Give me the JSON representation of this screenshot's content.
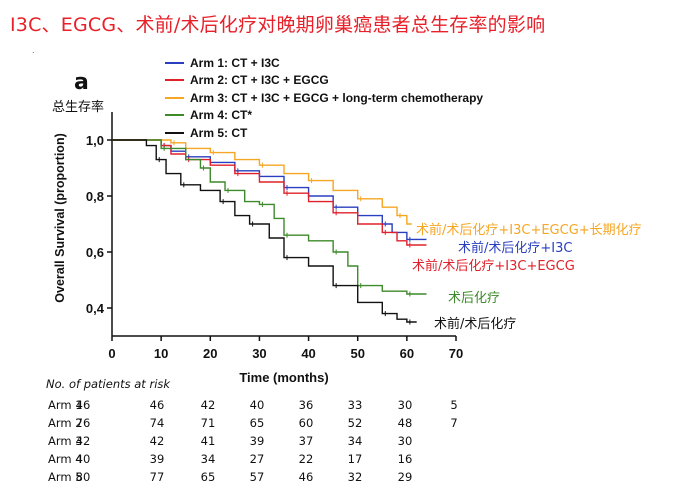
{
  "header": {
    "title": "I3C、EGCG、术前/术后化疗对晚期卵巢癌患者总生存率的影响",
    "dot": ".",
    "panel_label": "a",
    "y_label_cn": "总生存率"
  },
  "chart_data": {
    "type": "line",
    "subtype": "kaplan-meier",
    "xlabel": "Time (months)",
    "ylabel": "Overall Survival (proportion)",
    "xlim": [
      0,
      70
    ],
    "ylim": [
      0.3,
      1.1
    ],
    "x_ticks": [
      "0",
      "10",
      "20",
      "30",
      "40",
      "50",
      "60",
      "70"
    ],
    "x_tick_values": [
      0,
      10,
      20,
      30,
      40,
      50,
      60,
      70
    ],
    "y_ticks": [
      "0,4",
      "0,6",
      "0,8",
      "1,0"
    ],
    "y_tick_values": [
      0.4,
      0.6,
      0.8,
      1.0
    ],
    "legend_position": "top",
    "series": [
      {
        "name": "Arm 1: CT + I3C",
        "color": "#2a3fbf",
        "annotation": "术前/术后化疗+I3C",
        "points": [
          [
            0,
            1.0
          ],
          [
            8,
            1.0
          ],
          [
            10,
            0.98
          ],
          [
            12,
            0.96
          ],
          [
            15,
            0.94
          ],
          [
            20,
            0.92
          ],
          [
            25,
            0.89
          ],
          [
            30,
            0.87
          ],
          [
            35,
            0.83
          ],
          [
            40,
            0.8
          ],
          [
            45,
            0.76
          ],
          [
            50,
            0.73
          ],
          [
            55,
            0.7
          ],
          [
            57,
            0.67
          ],
          [
            60,
            0.645
          ],
          [
            64,
            0.645
          ]
        ]
      },
      {
        "name": "Arm 2: CT + I3C + EGCG",
        "color": "#e0202a",
        "annotation": "术前/术后化疗+I3C+EGCG",
        "points": [
          [
            0,
            1.0
          ],
          [
            8,
            1.0
          ],
          [
            10,
            0.98
          ],
          [
            12,
            0.95
          ],
          [
            15,
            0.93
          ],
          [
            20,
            0.91
          ],
          [
            25,
            0.88
          ],
          [
            30,
            0.85
          ],
          [
            35,
            0.81
          ],
          [
            40,
            0.78
          ],
          [
            45,
            0.74
          ],
          [
            50,
            0.7
          ],
          [
            55,
            0.67
          ],
          [
            58,
            0.64
          ],
          [
            60,
            0.625
          ],
          [
            64,
            0.625
          ]
        ]
      },
      {
        "name": "Arm 3: CT + I3C + EGCG + long-term chemotherapy",
        "color": "#f5a623",
        "annotation": "术前/术后化疗+I3C+EGCG+长期化疗",
        "points": [
          [
            0,
            1.0
          ],
          [
            8,
            1.0
          ],
          [
            12,
            0.99
          ],
          [
            15,
            0.97
          ],
          [
            20,
            0.955
          ],
          [
            25,
            0.93
          ],
          [
            30,
            0.91
          ],
          [
            35,
            0.88
          ],
          [
            40,
            0.855
          ],
          [
            45,
            0.82
          ],
          [
            50,
            0.79
          ],
          [
            55,
            0.76
          ],
          [
            58,
            0.73
          ],
          [
            60,
            0.7
          ],
          [
            61,
            0.7
          ]
        ]
      },
      {
        "name": "Arm 4: CT*",
        "color": "#3d8a2a",
        "annotation": "术后化疗",
        "points": [
          [
            0,
            1.0
          ],
          [
            8,
            1.0
          ],
          [
            10,
            0.97
          ],
          [
            15,
            0.93
          ],
          [
            18,
            0.9
          ],
          [
            20,
            0.85
          ],
          [
            23,
            0.82
          ],
          [
            27,
            0.78
          ],
          [
            30,
            0.77
          ],
          [
            33,
            0.72
          ],
          [
            35,
            0.66
          ],
          [
            40,
            0.64
          ],
          [
            45,
            0.6
          ],
          [
            48,
            0.55
          ],
          [
            50,
            0.48
          ],
          [
            55,
            0.46
          ],
          [
            60,
            0.45
          ],
          [
            64,
            0.45
          ]
        ]
      },
      {
        "name": "Arm 5: CT",
        "color": "#111111",
        "annotation": "术前/术后化疗",
        "points": [
          [
            0,
            1.0
          ],
          [
            7,
            0.98
          ],
          [
            9,
            0.93
          ],
          [
            11,
            0.88
          ],
          [
            14,
            0.84
          ],
          [
            18,
            0.82
          ],
          [
            22,
            0.78
          ],
          [
            25,
            0.73
          ],
          [
            28,
            0.7
          ],
          [
            32,
            0.65
          ],
          [
            35,
            0.58
          ],
          [
            40,
            0.55
          ],
          [
            45,
            0.48
          ],
          [
            50,
            0.42
          ],
          [
            55,
            0.38
          ],
          [
            58,
            0.36
          ],
          [
            60,
            0.35
          ],
          [
            62,
            0.35
          ]
        ]
      }
    ]
  },
  "risk_table": {
    "header": "No. of patients at risk",
    "rows": [
      {
        "label": "Arm 1",
        "values": [
          "46",
          "46",
          "42",
          "40",
          "36",
          "33",
          "30",
          "5"
        ]
      },
      {
        "label": "Arm 2",
        "values": [
          "76",
          "74",
          "71",
          "65",
          "60",
          "52",
          "48",
          "7"
        ]
      },
      {
        "label": "Arm 3",
        "values": [
          "42",
          "42",
          "41",
          "39",
          "37",
          "34",
          "30",
          ""
        ]
      },
      {
        "label": "Arm 4",
        "values": [
          "40",
          "39",
          "34",
          "27",
          "22",
          "17",
          "16",
          ""
        ]
      },
      {
        "label": "Arm 5",
        "values": [
          "80",
          "77",
          "65",
          "57",
          "46",
          "32",
          "29",
          ""
        ]
      }
    ]
  }
}
